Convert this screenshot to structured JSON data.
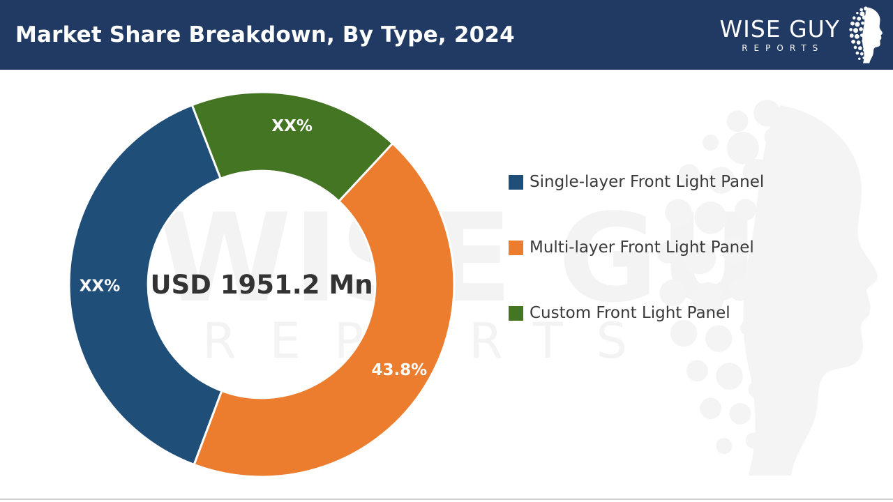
{
  "header": {
    "title": "Market Share Breakdown, By Type, 2024",
    "background_color": "#213A63",
    "logo": {
      "line1": "WISE GUY",
      "line2": "REPORTS"
    }
  },
  "watermark": {
    "line1": "WISE GUY",
    "line2": "REPORTS"
  },
  "chart_data": {
    "type": "pie",
    "style": "donut",
    "title": "Market Share Breakdown, By Type, 2024",
    "center_label": "USD 1951.2 Mn",
    "rotation_deg": -21.2,
    "inner_radius_ratio": 0.59,
    "legend_position": "right",
    "segments": [
      {
        "label": "Single-layer Front Light Panel",
        "value_pct": 38.4,
        "display_value": "XX%",
        "color": "#1F4E79"
      },
      {
        "label": "Multi-layer Front Light Panel",
        "value_pct": 43.8,
        "display_value": "43.8%",
        "color": "#EC7D2F"
      },
      {
        "label": "Custom Front Light Panel",
        "value_pct": 17.8,
        "display_value": "XX%",
        "color": "#447523"
      }
    ]
  }
}
